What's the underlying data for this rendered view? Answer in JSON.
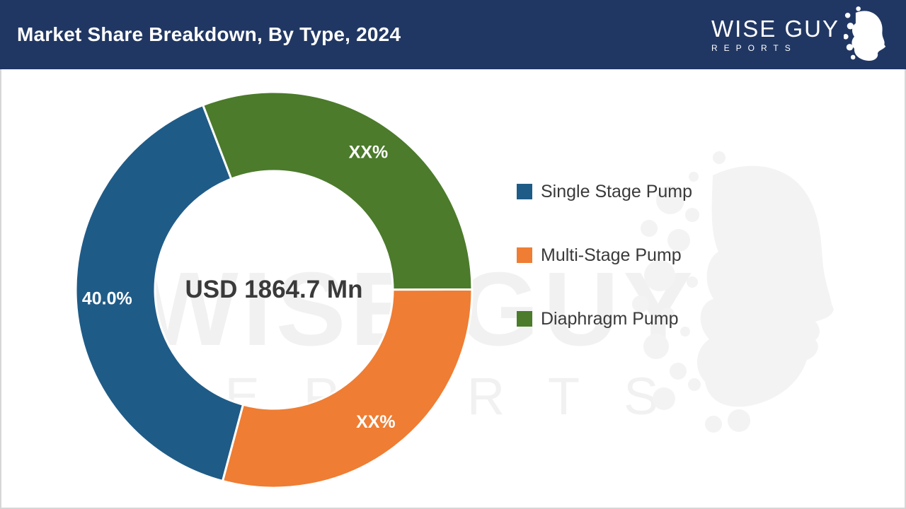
{
  "header": {
    "title": "Market Share Breakdown, By Type, 2024",
    "bg_color": "#213763",
    "logo": {
      "line1": "WISE GUY",
      "line2": "REPORTS"
    }
  },
  "watermark": {
    "line1": "WISE GUY",
    "line2": "REPORTS"
  },
  "chart_data": {
    "type": "pie",
    "subtype": "donut",
    "title": "Market Share Breakdown, By Type, 2024",
    "center_label": "USD 1864.7 Mn",
    "start_angle": 111,
    "direction": "counterclockwise",
    "legend_position": "right",
    "segments": [
      {
        "label": "Single Stage Pump",
        "value": 40.0,
        "display": "40.0%",
        "color": "#1f5b87"
      },
      {
        "label": "Multi-Stage Pump",
        "value": 29.2,
        "display": "XX%",
        "color": "#ef7d33"
      },
      {
        "label": "Diaphragm Pump",
        "value": 30.8,
        "display": "XX%",
        "color": "#4b7b2b"
      }
    ]
  }
}
